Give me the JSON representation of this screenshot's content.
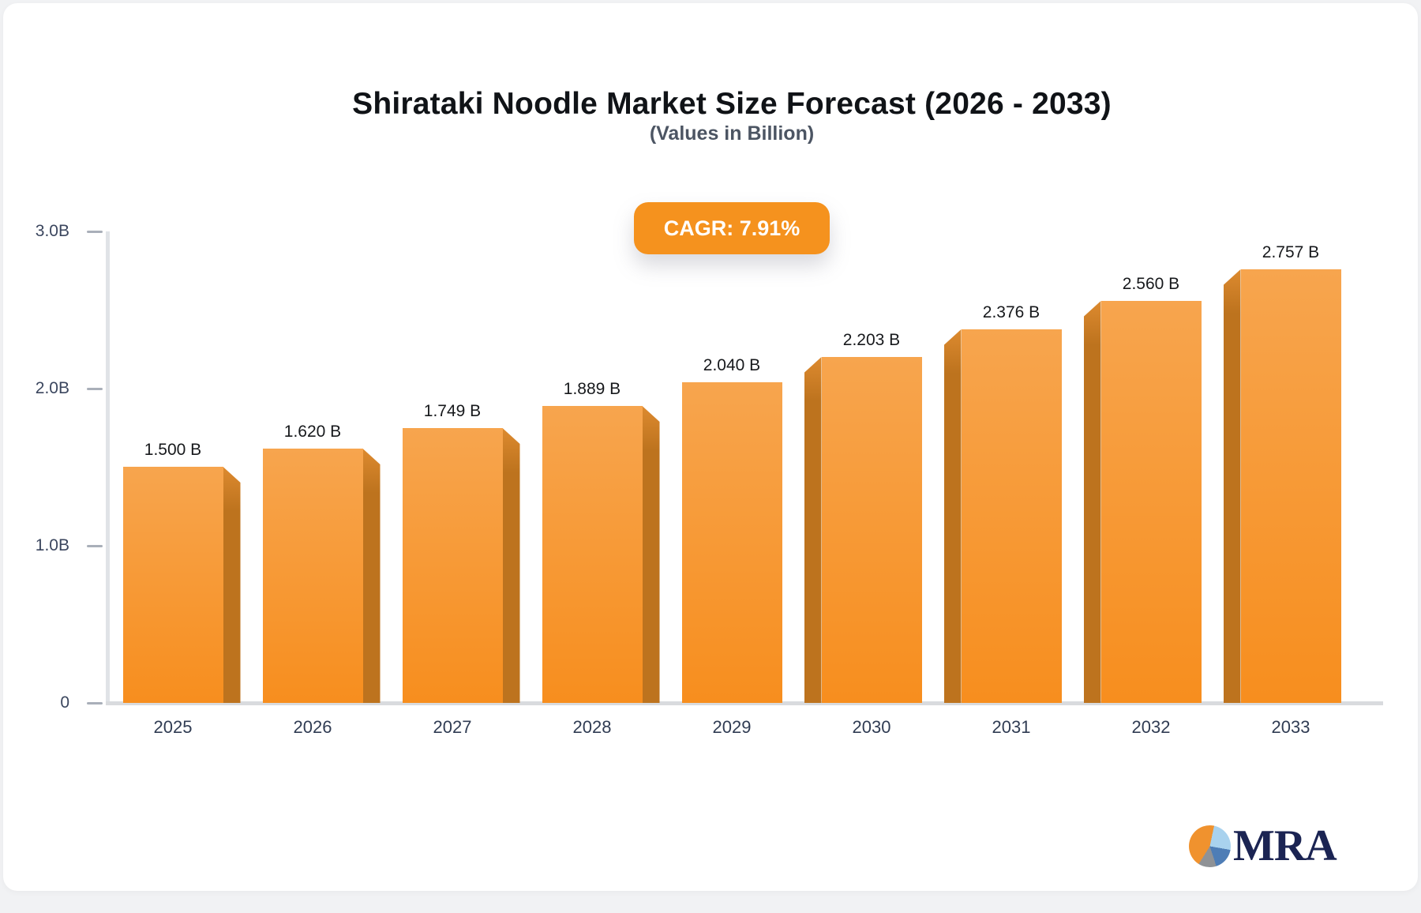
{
  "page": {
    "background": "#F1F2F4",
    "card_background": "#FFFFFF"
  },
  "header": {
    "title": "Shirataki Noodle Market Size Forecast (2026 - 2033)",
    "subtitle": "(Values in Billion)"
  },
  "badge": {
    "label": "CAGR: 7.91%",
    "background": "#F5921E",
    "text_color": "#FFFFFF"
  },
  "chart_data": {
    "type": "bar",
    "title": "Shirataki Noodle Market Size Forecast (2026 - 2033)",
    "subtitle": "(Values in Billion)",
    "unit": "Billion",
    "cagr": "7.91%",
    "categories": [
      "2025",
      "2026",
      "2027",
      "2028",
      "2029",
      "2030",
      "2031",
      "2032",
      "2033"
    ],
    "values": [
      1.5,
      1.62,
      1.749,
      1.889,
      2.04,
      2.203,
      2.376,
      2.56,
      2.757
    ],
    "value_labels": [
      "1.500 B",
      "1.620 B",
      "1.749 B",
      "1.889 B",
      "2.040 B",
      "2.203 B",
      "2.376 B",
      "2.560 B",
      "2.757 B"
    ],
    "xlabel": "",
    "ylabel": "",
    "ylim": [
      0,
      3.0
    ],
    "y_tick_labels": [
      "3.0B",
      "2.0B",
      "1.0B",
      "0"
    ],
    "y_tick_values": [
      3.0,
      2.0,
      1.0,
      0
    ],
    "grid": false,
    "legend": "none",
    "bar_colors": {
      "face_top": "#F7A54E",
      "face_bottom": "#F78E1E",
      "side_dark": "#BD731E",
      "side_light": "#DD8A2F"
    }
  },
  "logo": {
    "text": "MRA",
    "text_color": "#1B2453",
    "pie_colors": {
      "orange": "#F0922E",
      "light_blue": "#A9D2EE",
      "blue": "#4E7DB6",
      "gray": "#8F9296"
    }
  }
}
